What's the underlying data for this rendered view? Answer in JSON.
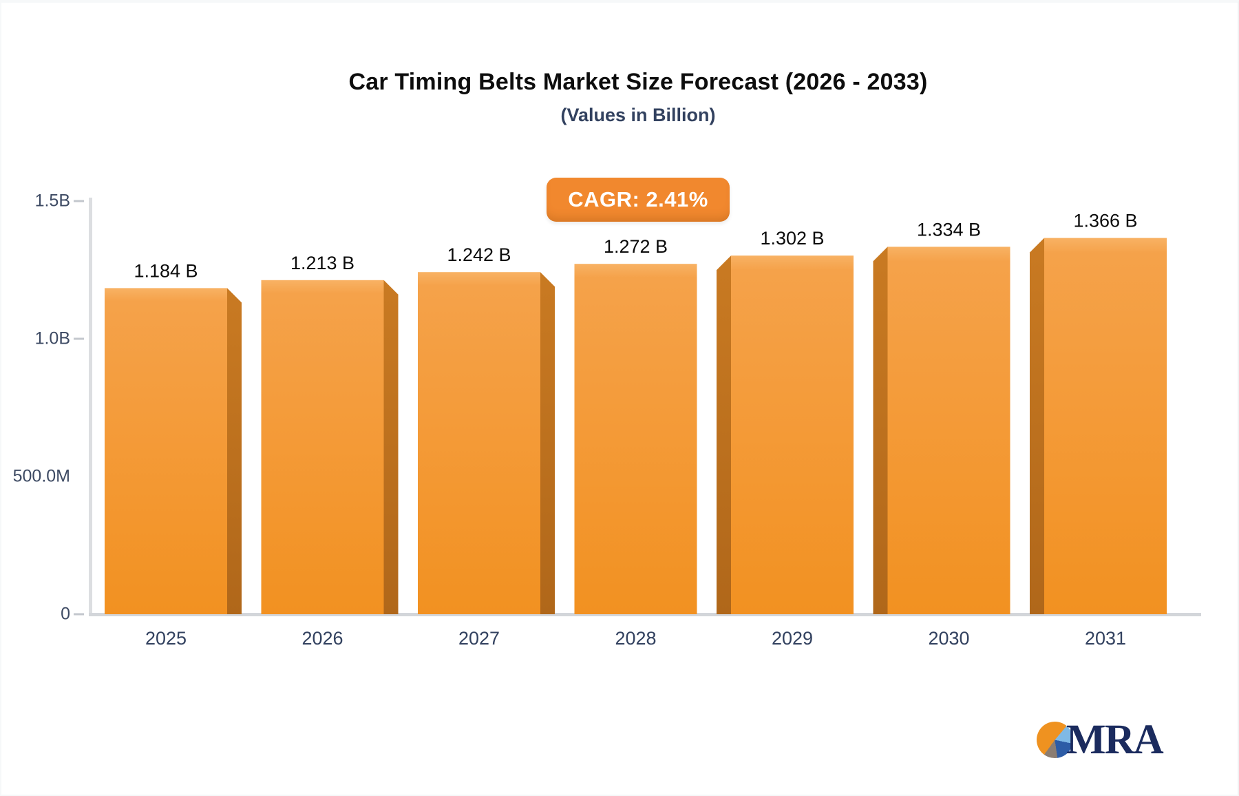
{
  "chart_data": {
    "type": "bar",
    "title": "Car Timing Belts Market Size Forecast (2026 - 2033)",
    "subtitle": "(Values in Billion)",
    "badge_label": "CAGR: 2.41%",
    "categories": [
      "2025",
      "2026",
      "2027",
      "2028",
      "2029",
      "2030",
      "2031"
    ],
    "values_billion": [
      1.184,
      1.213,
      1.242,
      1.272,
      1.302,
      1.334,
      1.366
    ],
    "value_labels": [
      "1.184 B",
      "1.213 B",
      "1.242 B",
      "1.272 B",
      "1.302 B",
      "1.334 B",
      "1.366 B"
    ],
    "yticks": [
      {
        "label": "1.5B",
        "value_billion": 1.5,
        "dash": true
      },
      {
        "label": "1.0B",
        "value_billion": 1.0,
        "dash": true
      },
      {
        "label": "500.0M",
        "value_billion": 0.5,
        "dash": false
      },
      {
        "label": "0",
        "value_billion": 0.0,
        "dash": true
      }
    ],
    "ylim_billion": [
      0,
      1.5
    ],
    "xlabel": "",
    "ylabel": "",
    "grid": false,
    "legend": false,
    "bar_style_3d": "perspective toward center: left bars show right side face, right bars show left side face, center bar flat"
  },
  "colors": {
    "bar_face_top": "#f6a44c",
    "bar_face_bottom": "#f29121",
    "bar_face_highlight": "#f8b264",
    "bar_side_dark": "#bf711e",
    "badge_bg": "#f1882e",
    "badge_text": "#ffffff",
    "title_text": "#0d0d0d",
    "subtitle_text": "#32415f",
    "axis_line": "#d3d6da",
    "tick_text": "#3d4a63",
    "year_text": "#32415f",
    "value_text": "#0b0b0b",
    "logo_text": "#1b2b5e",
    "logo_pie_orange": "#ef9220",
    "logo_pie_lightblue": "#7fb9e6",
    "logo_pie_darkblue": "#2d5ca6",
    "logo_pie_gray": "#8b7d72"
  },
  "branding": {
    "logo_text": "MRA"
  }
}
